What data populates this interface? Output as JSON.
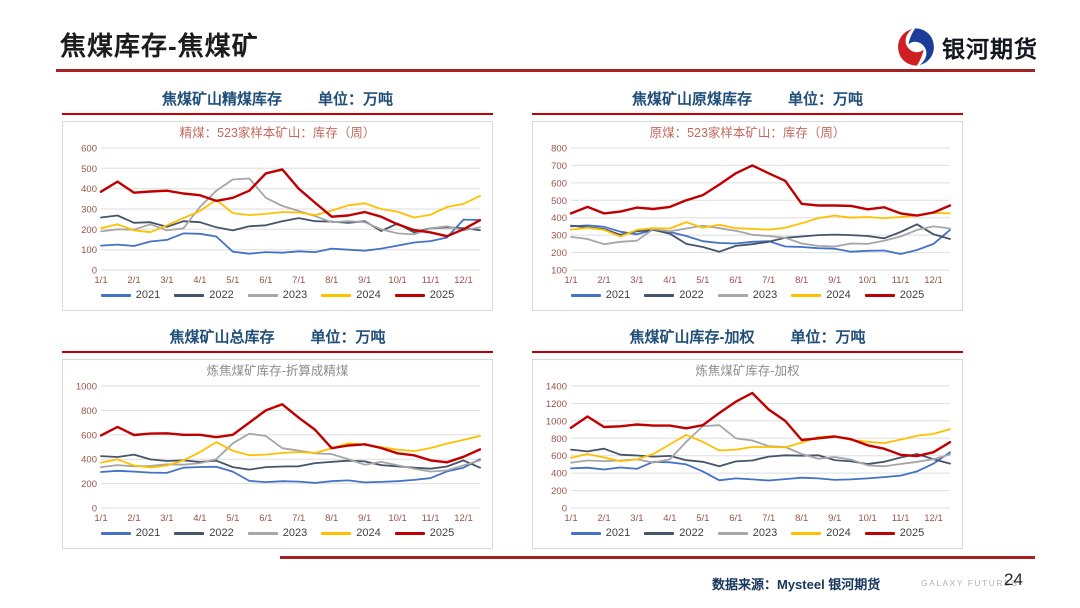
{
  "page": {
    "title": "焦煤库存-焦煤矿",
    "logo_text": "银河期货",
    "accent_red": "#a42222",
    "section_title_color": "#1f4e79",
    "footer": {
      "source": "数据来源：Mysteel 银河期货",
      "brand": "GALAXY FUTURES",
      "page_number": "24"
    }
  },
  "chart_data": [
    {
      "type": "line",
      "section_title": "焦煤矿山精煤库存",
      "unit_label": "单位：万吨",
      "title": "精煤：523家样本矿山：库存（周）",
      "title_color": "#c4695c",
      "xlabel": "",
      "ylabel": "",
      "ylim": [
        0,
        600
      ],
      "ytick_step": 100,
      "grid": true,
      "legend_position": "bottom",
      "x_tick_labels": [
        "1/1",
        "2/1",
        "3/1",
        "4/1",
        "5/1",
        "6/1",
        "7/1",
        "8/1",
        "9/1",
        "10/1",
        "11/1",
        "12/1"
      ],
      "series": [
        {
          "name": "2021",
          "color": "#4472C4",
          "values": [
            120,
            125,
            118,
            140,
            148,
            180,
            178,
            165,
            90,
            80,
            88,
            85,
            92,
            88,
            105,
            100,
            95,
            105,
            120,
            135,
            142,
            160,
            248,
            246
          ]
        },
        {
          "name": "2022",
          "color": "#44546A",
          "values": [
            258,
            268,
            232,
            235,
            212,
            240,
            235,
            210,
            195,
            215,
            220,
            240,
            255,
            240,
            238,
            232,
            240,
            192,
            228,
            185,
            205,
            210,
            205,
            196
          ]
        },
        {
          "name": "2023",
          "color": "#A6A6A6",
          "values": [
            190,
            200,
            198,
            225,
            195,
            205,
            310,
            390,
            445,
            450,
            355,
            315,
            290,
            265,
            235,
            240,
            235,
            200,
            180,
            175,
            205,
            215,
            195,
            210
          ]
        },
        {
          "name": "2024",
          "color": "#FFC000",
          "values": [
            205,
            225,
            195,
            186,
            220,
            255,
            290,
            345,
            280,
            270,
            276,
            285,
            283,
            270,
            292,
            318,
            328,
            300,
            286,
            258,
            272,
            310,
            325,
            365
          ]
        },
        {
          "name": "2025",
          "color": "#C00000",
          "values": [
            385,
            435,
            380,
            386,
            390,
            376,
            368,
            340,
            355,
            390,
            475,
            495,
            400,
            330,
            262,
            268,
            285,
            262,
            225,
            196,
            185,
            166,
            200,
            245
          ]
        }
      ]
    },
    {
      "type": "line",
      "section_title": "焦煤矿山原煤库存",
      "unit_label": "单位：万吨",
      "title": "原煤：523家样本矿山：库存（周）",
      "title_color": "#c4695c",
      "xlabel": "",
      "ylabel": "",
      "ylim": [
        100,
        800
      ],
      "ytick_step": 100,
      "grid": true,
      "legend_position": "bottom",
      "x_tick_labels": [
        "1/1",
        "2/1",
        "3/1",
        "4/1",
        "5/1",
        "6/1",
        "7/1",
        "8/1",
        "9/1",
        "10/1",
        "11/1",
        "12/1"
      ],
      "series": [
        {
          "name": "2021",
          "color": "#4472C4",
          "values": [
            350,
            356,
            348,
            320,
            305,
            330,
            318,
            295,
            265,
            255,
            252,
            262,
            265,
            235,
            232,
            225,
            222,
            205,
            210,
            212,
            192,
            215,
            250,
            330
          ]
        },
        {
          "name": "2022",
          "color": "#44546A",
          "values": [
            355,
            345,
            335,
            302,
            322,
            330,
            308,
            250,
            232,
            205,
            238,
            248,
            262,
            285,
            292,
            300,
            303,
            300,
            295,
            282,
            318,
            362,
            305,
            278
          ]
        },
        {
          "name": "2023",
          "color": "#A6A6A6",
          "values": [
            290,
            278,
            248,
            262,
            268,
            335,
            322,
            338,
            355,
            340,
            325,
            302,
            295,
            285,
            252,
            238,
            235,
            252,
            250,
            268,
            292,
            330,
            350,
            338
          ]
        },
        {
          "name": "2024",
          "color": "#FFC000",
          "values": [
            332,
            342,
            330,
            292,
            330,
            340,
            338,
            375,
            342,
            360,
            340,
            336,
            332,
            342,
            368,
            398,
            412,
            400,
            404,
            398,
            404,
            412,
            428,
            425
          ]
        },
        {
          "name": "2025",
          "color": "#C00000",
          "values": [
            425,
            462,
            425,
            435,
            458,
            450,
            462,
            500,
            530,
            590,
            655,
            700,
            655,
            612,
            480,
            470,
            470,
            468,
            448,
            460,
            425,
            412,
            430,
            470
          ]
        }
      ]
    },
    {
      "type": "line",
      "section_title": "焦煤矿山总库存",
      "unit_label": "单位：万吨",
      "title": "炼焦煤矿库存-折算成精煤",
      "title_color": "#8c8c8c",
      "xlabel": "",
      "ylabel": "",
      "ylim": [
        0,
        1000
      ],
      "ytick_step": 200,
      "grid": true,
      "legend_position": "bottom",
      "x_tick_labels": [
        "1/1",
        "2/1",
        "3/1",
        "4/1",
        "5/1",
        "6/1",
        "7/1",
        "8/1",
        "9/1",
        "10/1",
        "11/1",
        "12/1"
      ],
      "series": [
        {
          "name": "2021",
          "color": "#4472C4",
          "values": [
            295,
            305,
            298,
            290,
            288,
            330,
            336,
            338,
            298,
            222,
            212,
            220,
            216,
            206,
            220,
            226,
            210,
            214,
            220,
            230,
            245,
            300,
            330,
            400
          ]
        },
        {
          "name": "2022",
          "color": "#44546A",
          "values": [
            425,
            418,
            438,
            398,
            385,
            390,
            378,
            388,
            335,
            315,
            335,
            340,
            342,
            368,
            378,
            388,
            382,
            352,
            342,
            330,
            322,
            340,
            390,
            330
          ]
        },
        {
          "name": "2023",
          "color": "#A6A6A6",
          "values": [
            335,
            352,
            342,
            345,
            358,
            355,
            368,
            400,
            530,
            610,
            590,
            490,
            470,
            448,
            442,
            400,
            355,
            378,
            350,
            322,
            298,
            308,
            350,
            390
          ]
        },
        {
          "name": "2024",
          "color": "#FFC000",
          "values": [
            372,
            398,
            348,
            332,
            348,
            390,
            458,
            540,
            470,
            432,
            438,
            452,
            458,
            452,
            490,
            530,
            520,
            498,
            478,
            466,
            492,
            528,
            558,
            590
          ]
        },
        {
          "name": "2025",
          "color": "#C00000",
          "values": [
            595,
            665,
            598,
            610,
            612,
            600,
            600,
            580,
            600,
            700,
            800,
            850,
            740,
            640,
            490,
            512,
            522,
            492,
            448,
            432,
            390,
            375,
            420,
            480
          ]
        }
      ]
    },
    {
      "type": "line",
      "section_title": "焦煤矿山库存-加权",
      "unit_label": "单位：万吨",
      "title": "炼焦煤矿库存-加权",
      "title_color": "#8c8c8c",
      "xlabel": "",
      "ylabel": "",
      "ylim": [
        0,
        1400
      ],
      "ytick_step": 200,
      "grid": true,
      "legend_position": "bottom",
      "x_tick_labels": [
        "1/1",
        "2/1",
        "3/1",
        "4/1",
        "5/1",
        "6/1",
        "7/1",
        "8/1",
        "9/1",
        "10/1",
        "11/1",
        "12/1"
      ],
      "series": [
        {
          "name": "2021",
          "color": "#4472C4",
          "values": [
            455,
            462,
            442,
            465,
            450,
            530,
            525,
            500,
            420,
            318,
            340,
            328,
            315,
            332,
            348,
            340,
            322,
            328,
            340,
            355,
            372,
            420,
            510,
            640
          ]
        },
        {
          "name": "2022",
          "color": "#44546A",
          "values": [
            670,
            650,
            680,
            612,
            602,
            590,
            598,
            548,
            530,
            478,
            535,
            545,
            590,
            605,
            600,
            605,
            550,
            535,
            505,
            530,
            580,
            620,
            560,
            510
          ]
        },
        {
          "name": "2023",
          "color": "#A6A6A6",
          "values": [
            520,
            545,
            538,
            545,
            558,
            522,
            560,
            760,
            940,
            950,
            800,
            775,
            710,
            700,
            620,
            565,
            585,
            555,
            490,
            478,
            505,
            530,
            560,
            615
          ]
        },
        {
          "name": "2024",
          "color": "#FFC000",
          "values": [
            575,
            620,
            580,
            538,
            558,
            620,
            730,
            840,
            760,
            660,
            670,
            700,
            700,
            695,
            750,
            815,
            825,
            780,
            760,
            745,
            785,
            830,
            850,
            905
          ]
        },
        {
          "name": "2025",
          "color": "#C00000",
          "values": [
            920,
            1050,
            930,
            938,
            958,
            945,
            945,
            915,
            950,
            1090,
            1220,
            1320,
            1130,
            1000,
            780,
            800,
            820,
            790,
            720,
            680,
            610,
            595,
            640,
            755
          ]
        }
      ]
    }
  ]
}
